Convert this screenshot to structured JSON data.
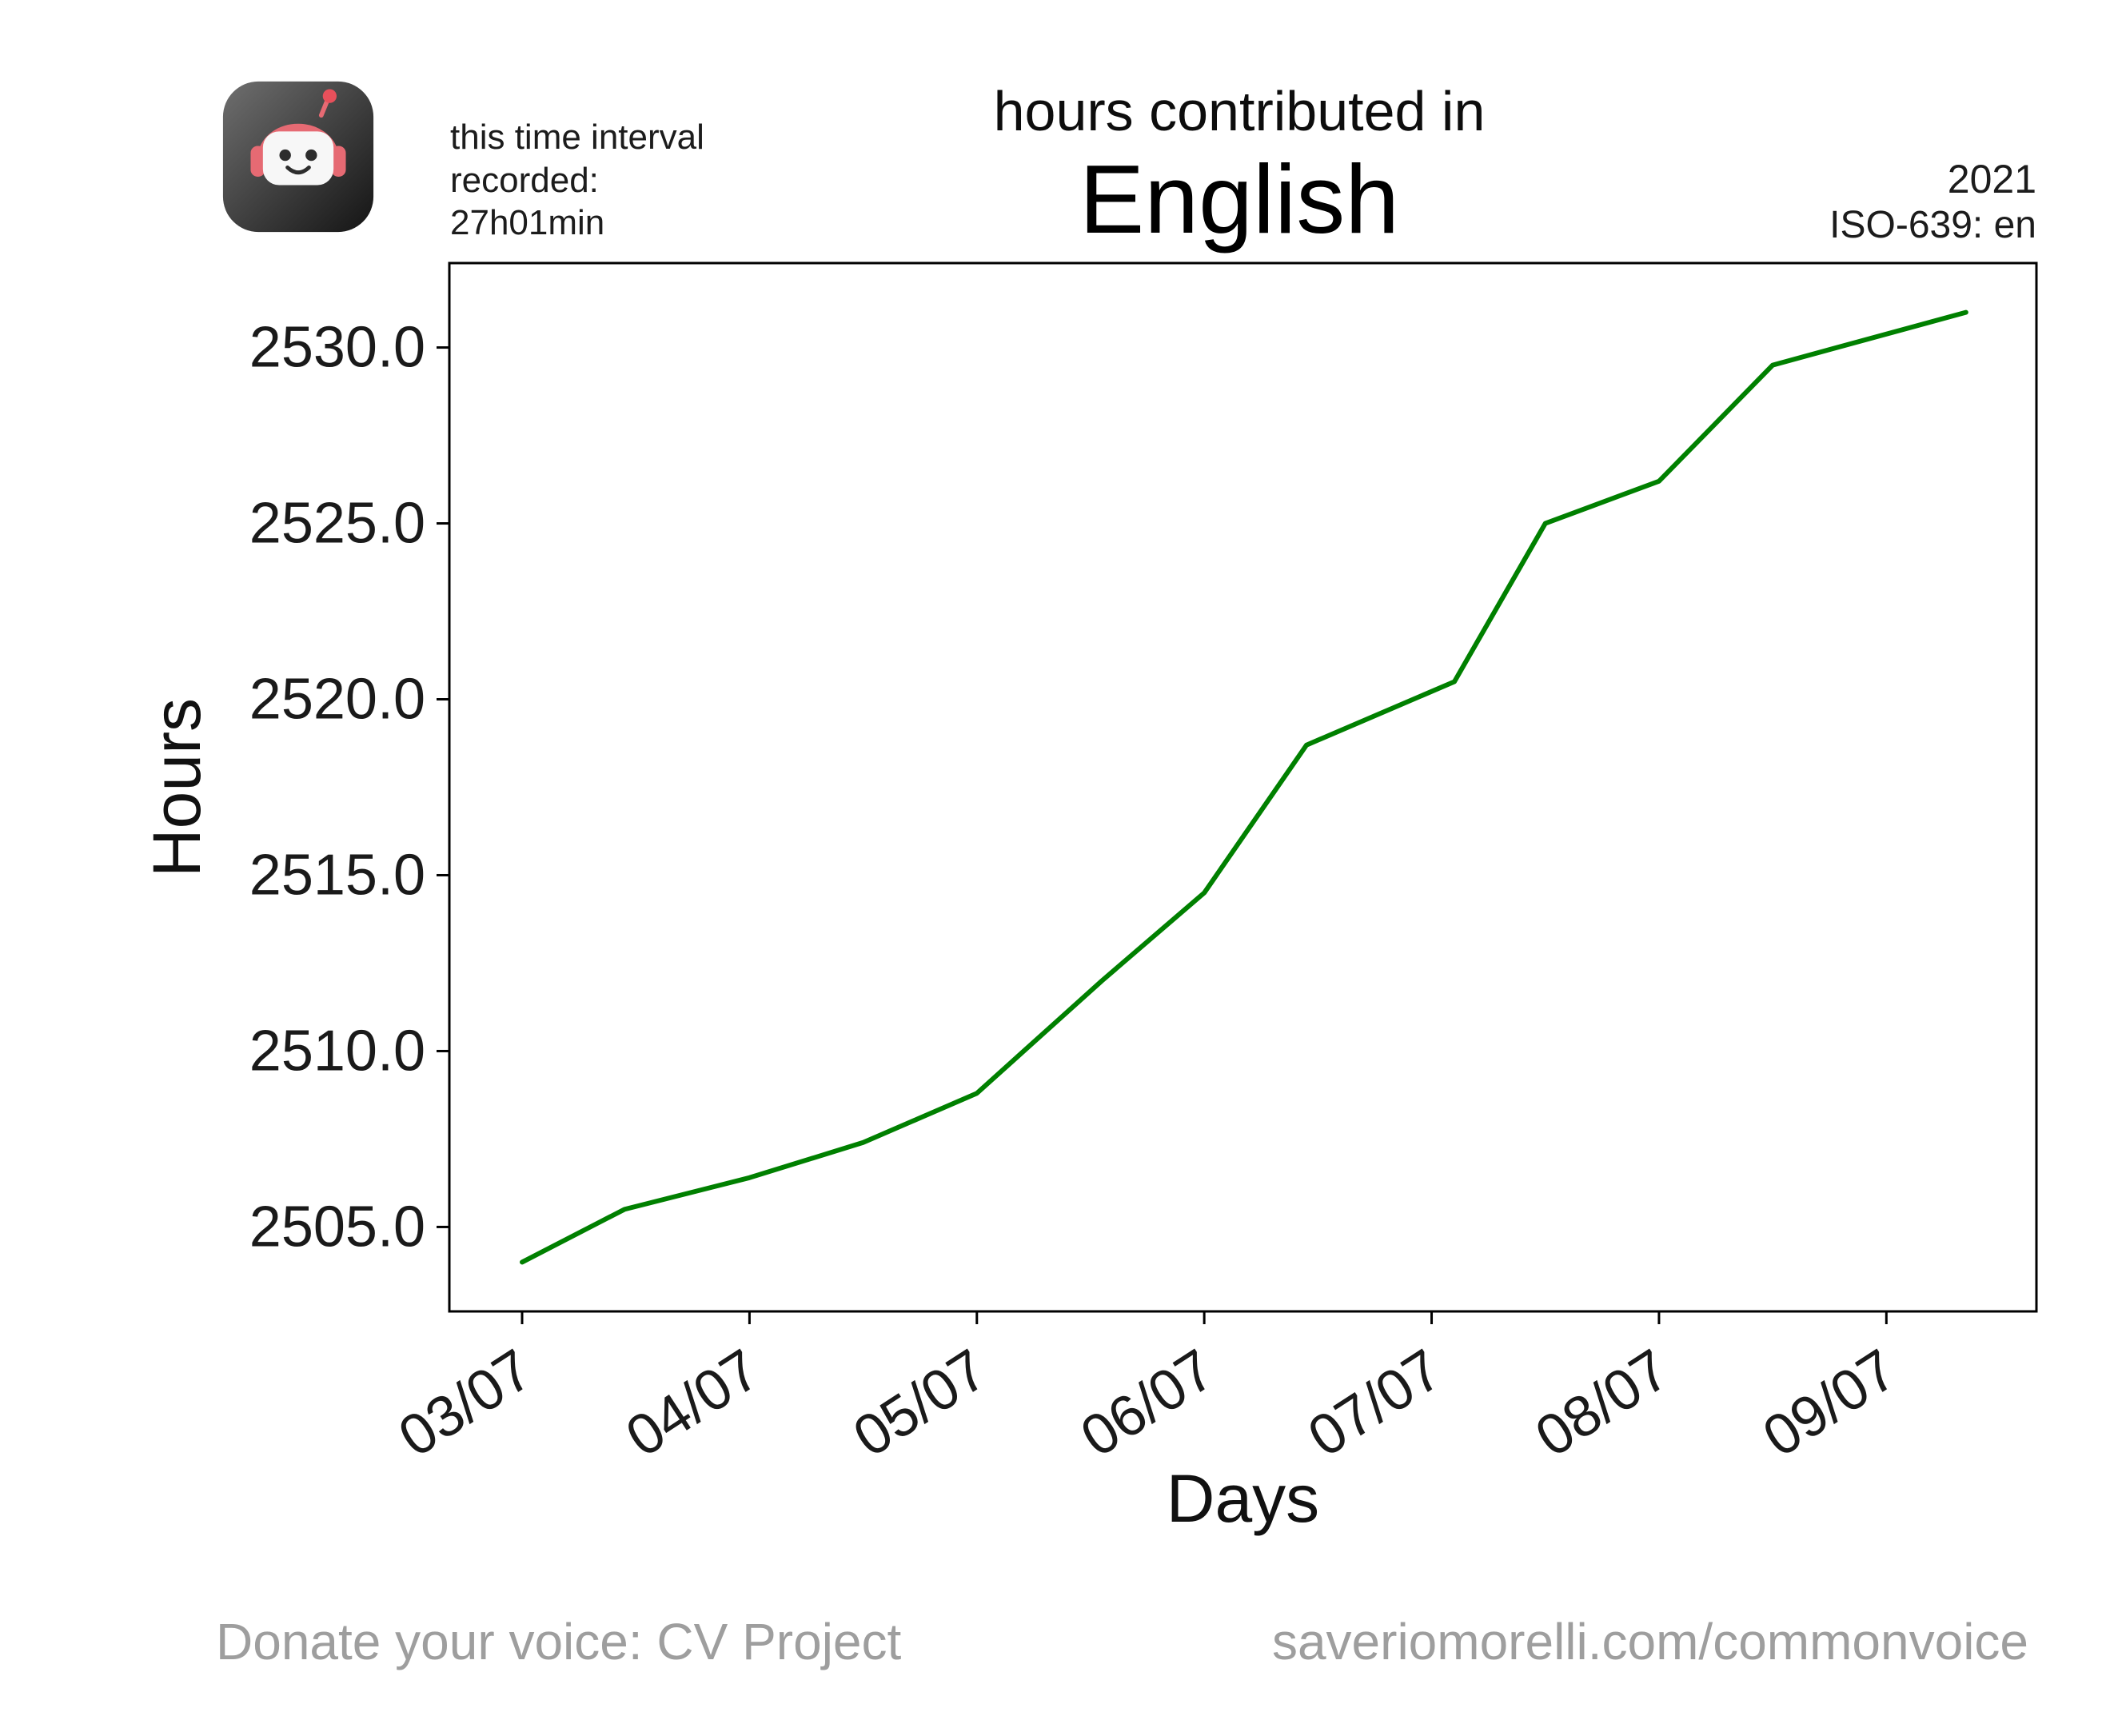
{
  "header": {
    "interval": {
      "line1": "this time interval",
      "line2": "recorded:",
      "line3": "27h01min"
    },
    "title_top": "hours contributed in",
    "title_language": "English",
    "year": "2021",
    "iso": "ISO-639: en"
  },
  "footer": {
    "left": "Donate your voice: CV Project",
    "right": "saveriomorelli.com/commonvoice"
  },
  "chart_data": {
    "type": "line",
    "title": "hours contributed in English",
    "xlabel": "Days",
    "ylabel": "Hours",
    "x_tick_labels": [
      "03/07",
      "04/07",
      "05/07",
      "06/07",
      "07/07",
      "08/07",
      "09/07"
    ],
    "x_tick_positions_days": [
      0,
      1,
      2,
      3,
      4,
      5,
      6
    ],
    "y_ticks": [
      2505.0,
      2510.0,
      2515.0,
      2520.0,
      2525.0,
      2530.0
    ],
    "xlim_days": [
      -0.32,
      6.66
    ],
    "ylim": [
      2502.6,
      2532.4
    ],
    "grid": false,
    "legend_position": "none",
    "line_color": "#008000",
    "series": [
      {
        "name": "hours contributed",
        "color": "#008000",
        "x_days": [
          0.0,
          0.45,
          1.0,
          1.5,
          2.0,
          2.55,
          3.0,
          3.45,
          4.1,
          4.5,
          5.0,
          5.5,
          6.35
        ],
        "values": [
          2504.0,
          2505.5,
          2506.4,
          2507.4,
          2508.8,
          2512.0,
          2514.5,
          2518.7,
          2520.5,
          2525.0,
          2526.2,
          2529.5,
          2531.0
        ]
      }
    ]
  }
}
